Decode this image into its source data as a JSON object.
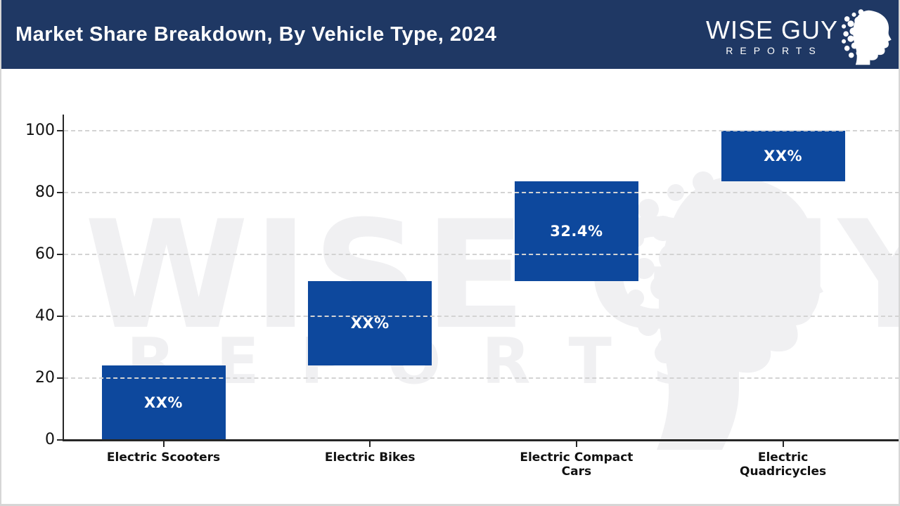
{
  "header": {
    "title": "Market Share Breakdown, By Vehicle Type, 2024",
    "logo": {
      "line1": "WISE GUY",
      "line2": "REPORTS"
    }
  },
  "watermark": {
    "line1": "WISE GUY",
    "line2": "REPORTS"
  },
  "chart_data": {
    "type": "bar",
    "subtype": "floating-waterfall",
    "title": "Market Share Breakdown, By Vehicle Type, 2024",
    "categories": [
      "Electric Scooters",
      "Electric Bikes",
      "Electric Compact Cars",
      "Electric Quadricycles"
    ],
    "category_lines": [
      [
        "Electric Scooters"
      ],
      [
        "Electric Bikes"
      ],
      [
        "Electric Compact",
        "Cars"
      ],
      [
        "Electric",
        "Quadricycles"
      ]
    ],
    "series": [
      {
        "name": "Market Share",
        "segments": [
          {
            "category": "Electric Scooters",
            "start": 0,
            "end": 24.2,
            "label": "XX%"
          },
          {
            "category": "Electric Bikes",
            "start": 24.2,
            "end": 51.4,
            "label": "XX%"
          },
          {
            "category": "Electric Compact Cars",
            "start": 51.4,
            "end": 83.8,
            "label": "32.4%"
          },
          {
            "category": "Electric Quadricycles",
            "start": 83.8,
            "end": 100,
            "label": "XX%"
          }
        ]
      }
    ],
    "xlabel": "",
    "ylabel": "",
    "ylim": [
      0,
      100
    ],
    "yticks": [
      0,
      20,
      40,
      60,
      80,
      100
    ],
    "grid": "horizontal-dashed",
    "legend": "none",
    "bar_color": "#0d489d",
    "bar_label_color": "#ffffff"
  },
  "colors": {
    "header_bg": "#1f3864",
    "axis": "#262626",
    "gridline": "#d3d3d3",
    "watermark": "#f0f0f2",
    "tick_text": "#111111"
  }
}
